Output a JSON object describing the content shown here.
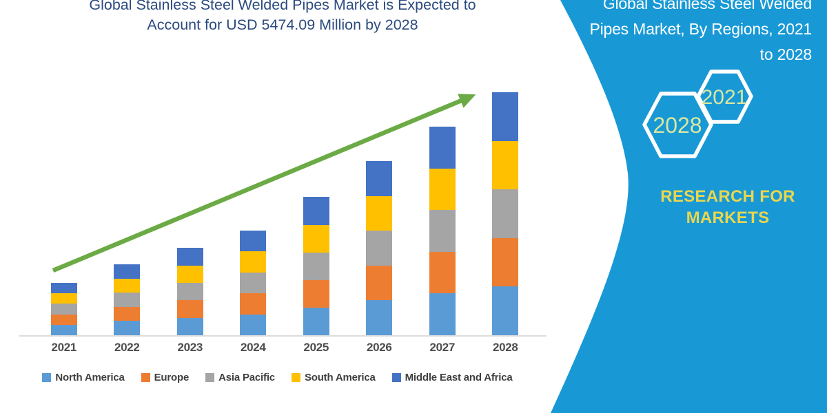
{
  "title": {
    "lines": [
      "Global Stainless Steel Welded Pipes Market is Expected to",
      "Account for USD 5474.09 Million by 2028"
    ]
  },
  "side_panel": {
    "heading_lines": [
      "Global Stainless Steel Welded",
      "Pipes Market, By Regions, 2021",
      "to 2028"
    ],
    "hexagon_back": {
      "label": "2021"
    },
    "hexagon_front": {
      "label": "2028"
    },
    "brand_lines": [
      "RESEARCH FOR",
      "MARKETS"
    ]
  },
  "colors": {
    "panel_blue": "#1899D6",
    "title_navy": "#2B4A7E",
    "arrow_green": "#6BAA45",
    "hexagon_text": "#D9E7A0",
    "brand_yellow": "#EAD64E",
    "axis_line": "#DCDCDC",
    "axis_label": "#4D4D4D",
    "legend_text": "#3F3F3F"
  },
  "chart_data": {
    "type": "bar",
    "stacked": true,
    "title": "Global Stainless Steel Welded Pipes Market is Expected to Account for USD 5474.09 Million by 2028",
    "unit": "USD Million",
    "headline_value_2028": "USD 5474.09 Million",
    "categories": [
      "2021",
      "2022",
      "2023",
      "2024",
      "2025",
      "2026",
      "2027",
      "2028"
    ],
    "series": [
      {
        "name": "North America",
        "color": "#5B9BD5",
        "values": [
          236,
          319,
          393,
          472,
          622,
          784,
          939,
          1095
        ]
      },
      {
        "name": "Europe",
        "color": "#ED7D31",
        "values": [
          236,
          319,
          393,
          472,
          622,
          784,
          939,
          1095
        ]
      },
      {
        "name": "Asia Pacific",
        "color": "#A5A5A5",
        "values": [
          236,
          319,
          393,
          472,
          622,
          784,
          939,
          1095
        ]
      },
      {
        "name": "South America",
        "color": "#FFC000",
        "values": [
          236,
          319,
          393,
          472,
          622,
          784,
          939,
          1095
        ]
      },
      {
        "name": "Middle East and Africa",
        "color": "#4472C4",
        "values": [
          236,
          319,
          393,
          472,
          622,
          784,
          939,
          1095
        ]
      }
    ],
    "estimated_totals": [
      1180,
      1595,
      1965,
      2360,
      3110,
      3920,
      4695,
      5474.09
    ],
    "ylim": [
      0,
      5600
    ],
    "gridlines": false,
    "legend_position": "bottom",
    "trend": "upward-arrow"
  }
}
